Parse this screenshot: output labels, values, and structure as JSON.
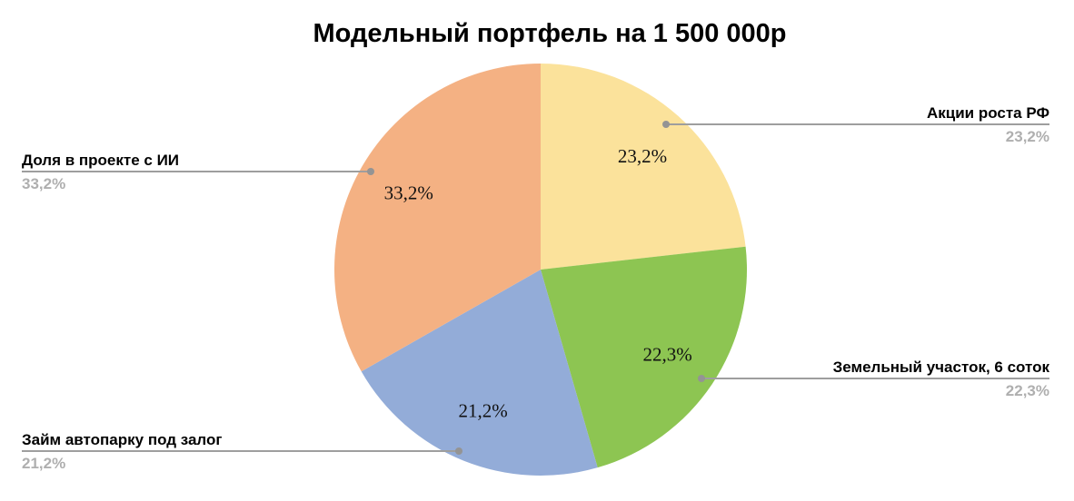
{
  "chart_data": {
    "type": "pie",
    "title": "Модельный портфель на 1 500 000р",
    "legend_position": "outside-callouts",
    "start_angle_deg": 0,
    "direction": "clockwise",
    "background_color": "#ffffff",
    "callout_line_color": "#9e9e9e",
    "callout_percent_color": "#afafaf",
    "slices": [
      {
        "label": "Акции роста РФ",
        "value": 23.2,
        "value_label": "23,2%",
        "color": "#FBE29B"
      },
      {
        "label": "Земельный участок, 6 соток",
        "value": 22.3,
        "value_label": "22,3%",
        "color": "#8DC552"
      },
      {
        "label": "Займ автопарку под залог",
        "value": 21.2,
        "value_label": "21,2%",
        "color": "#93ACD8"
      },
      {
        "label": "Доля в проекте с ИИ",
        "value": 33.2,
        "value_label": "33,2%",
        "color": "#F4B183"
      }
    ]
  }
}
